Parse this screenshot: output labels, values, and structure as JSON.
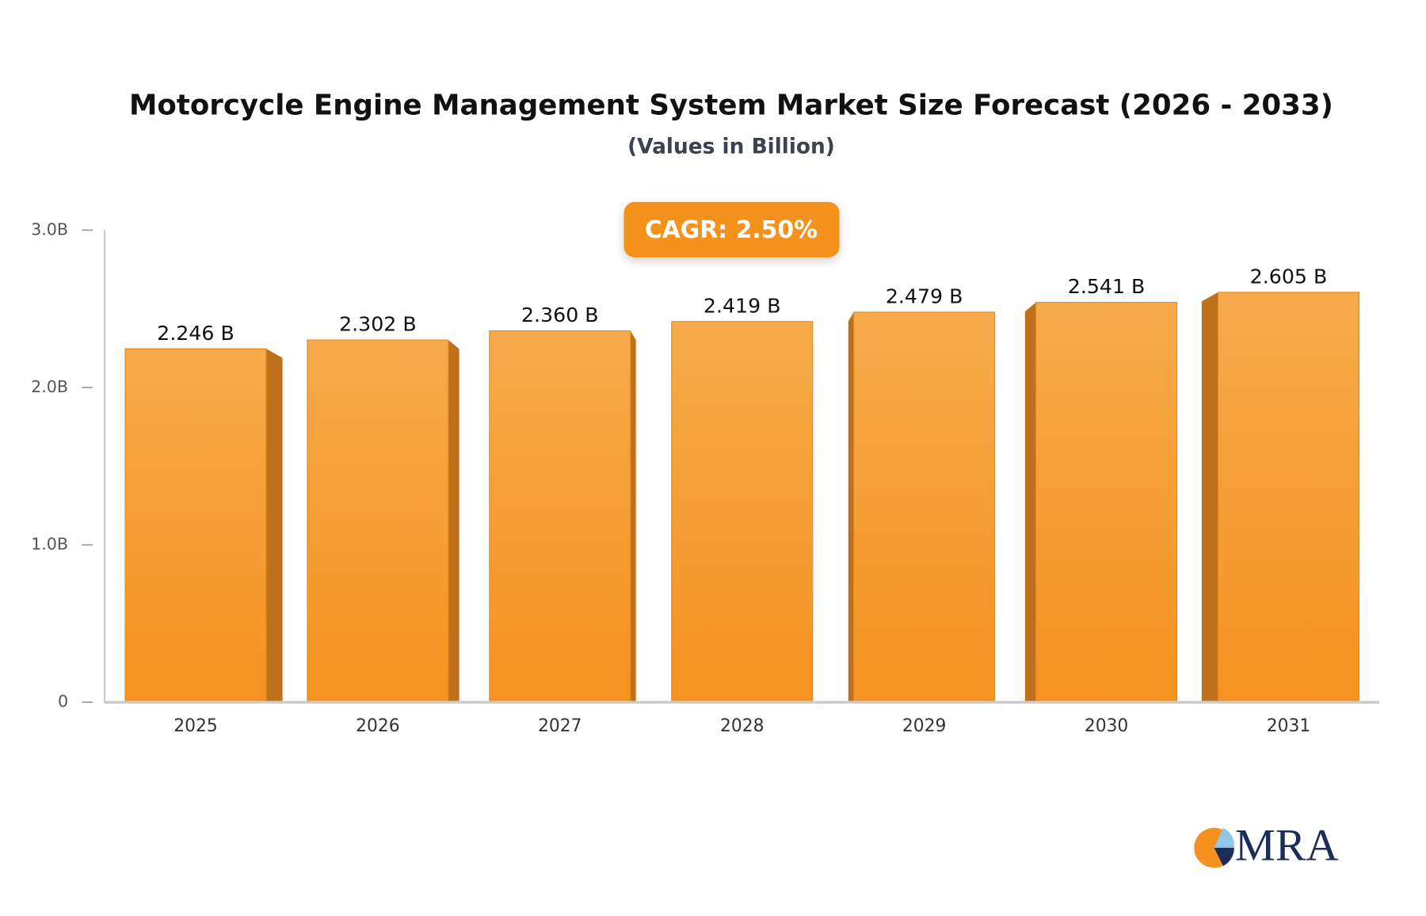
{
  "chart_data": {
    "type": "bar",
    "title": "Motorcycle Engine Management System Market Size Forecast (2026 - 2033)",
    "subtitle": "(Values in Billion)",
    "annotation": "CAGR: 2.50%",
    "logo": "MRA",
    "categories": [
      "2025",
      "2026",
      "2027",
      "2028",
      "2029",
      "2030",
      "2031"
    ],
    "values": [
      2.246,
      2.302,
      2.36,
      2.419,
      2.479,
      2.541,
      2.605
    ],
    "value_labels": [
      "2.246 B",
      "2.302 B",
      "2.360 B",
      "2.419 B",
      "2.479 B",
      "2.541 B",
      "2.605 B"
    ],
    "color": "#f5951f",
    "ylim": [
      0,
      3
    ],
    "yticks": [
      0,
      {
        "value": 1,
        "label": "1.0B"
      },
      {
        "value": 2,
        "label": "2.0B"
      },
      {
        "value": 3,
        "label": "3.0B"
      }
    ],
    "grid": false
  }
}
